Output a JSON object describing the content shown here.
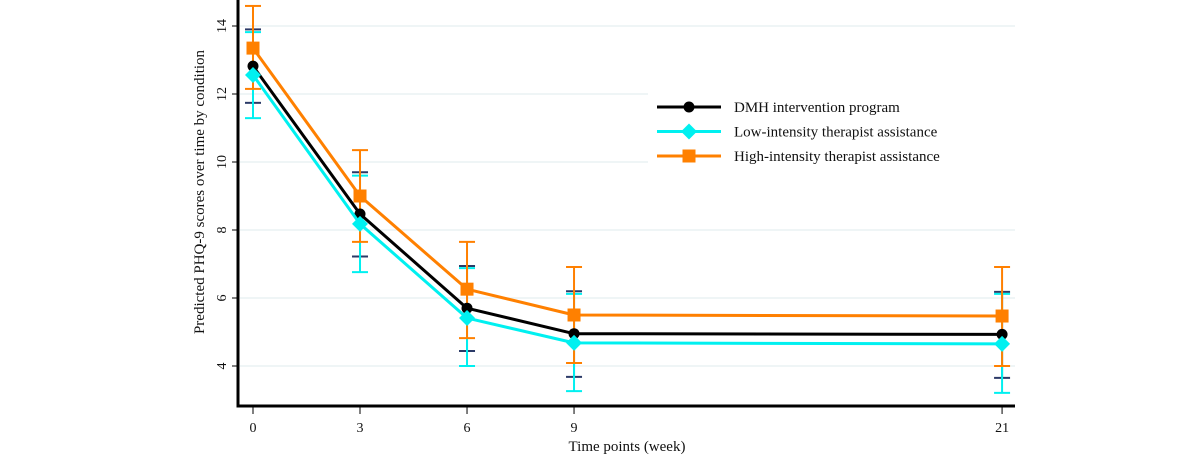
{
  "chart_data": {
    "type": "line",
    "title": "",
    "xlabel": "Time points (week)",
    "ylabel": "Predicted PHQ-9 scores over time by condition",
    "x": [
      0,
      3,
      6,
      9,
      21
    ],
    "x_ticks": [
      "0",
      "3",
      "6",
      "9",
      "21"
    ],
    "y_ticks": [
      "4",
      "6",
      "8",
      "10",
      "12",
      "14"
    ],
    "y_tick_values": [
      4,
      6,
      8,
      10,
      12,
      14
    ],
    "xlim": [
      -0.42,
      21.4
    ],
    "ylim": [
      2.8,
      14.77
    ],
    "grid": "horizontal",
    "legend_position": "upper-right inside",
    "series": [
      {
        "name": "DMH intervention program",
        "color": "#000000",
        "ci_color": "#2b3a67",
        "marker": "circle",
        "values": [
          12.82,
          8.47,
          5.7,
          4.95,
          4.93
        ],
        "ci_lower": [
          11.74,
          7.22,
          4.44,
          3.68,
          3.65
        ],
        "ci_upper": [
          13.9,
          9.7,
          6.94,
          6.2,
          6.18
        ]
      },
      {
        "name": "Low-intensity therapist assistance",
        "color": "#00f0f0",
        "ci_color": "#00f0f0",
        "marker": "diamond",
        "values": [
          12.56,
          8.18,
          5.41,
          4.68,
          4.65
        ],
        "ci_lower": [
          11.29,
          6.76,
          4.0,
          3.26,
          3.21
        ],
        "ci_upper": [
          13.82,
          9.6,
          6.88,
          6.12,
          6.12
        ]
      },
      {
        "name": "High-intensity therapist assistance",
        "color": "#ff8000",
        "ci_color": "#ff8000",
        "marker": "square",
        "values": [
          13.35,
          9.0,
          6.26,
          5.5,
          5.47
        ],
        "ci_lower": [
          12.15,
          7.65,
          4.82,
          4.09,
          4.0
        ],
        "ci_upper": [
          14.59,
          10.35,
          7.65,
          6.91,
          6.91
        ]
      }
    ]
  }
}
